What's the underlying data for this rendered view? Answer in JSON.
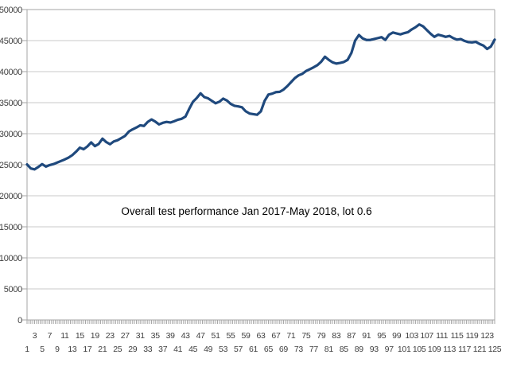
{
  "title": "Overall test performance Jan 2017-May 2018, lot 0.6",
  "colors": {
    "line": "#1F497D",
    "gridline": "#C9C9C9",
    "axis": "#A6A6A6",
    "tick_label": "#3F3F3F",
    "title_text": "#000000",
    "background": "#FFFFFF"
  },
  "chart_data": {
    "type": "line",
    "title": "Overall test performance Jan 2017-May 2018, lot 0.6",
    "xlabel": "",
    "ylabel": "",
    "x_start": 1,
    "x_step": 1,
    "x_count": 125,
    "xlim": [
      1,
      125
    ],
    "ylim": [
      0,
      50000
    ],
    "ytick_step": 5000,
    "yticks": [
      0,
      5000,
      10000,
      15000,
      20000,
      25000,
      30000,
      35000,
      40000,
      45000,
      50000
    ],
    "xtick_labels": [
      1,
      3,
      5,
      7,
      9,
      11,
      13,
      15,
      17,
      19,
      21,
      23,
      25,
      27,
      29,
      31,
      33,
      35,
      37,
      39,
      41,
      43,
      45,
      47,
      49,
      51,
      53,
      55,
      57,
      59,
      61,
      63,
      65,
      67,
      69,
      71,
      73,
      75,
      77,
      79,
      81,
      83,
      85,
      87,
      89,
      91,
      93,
      95,
      97,
      99,
      101,
      103,
      105,
      107,
      109,
      111,
      113,
      115,
      117,
      119,
      121,
      123,
      125
    ],
    "xtick_label_rows": "staggered-two-rows",
    "grid": "horizontal",
    "legend": "none",
    "series": [
      {
        "name": "Overall test performance",
        "values": [
          25050,
          24400,
          24250,
          24650,
          25100,
          24700,
          24950,
          25100,
          25350,
          25600,
          25850,
          26150,
          26550,
          27100,
          27750,
          27500,
          27950,
          28600,
          28000,
          28350,
          29200,
          28650,
          28300,
          28750,
          28950,
          29300,
          29650,
          30350,
          30700,
          31000,
          31350,
          31250,
          31900,
          32300,
          31950,
          31500,
          31750,
          31900,
          31800,
          32000,
          32250,
          32400,
          32750,
          34000,
          35150,
          35750,
          36500,
          35900,
          35700,
          35300,
          34900,
          35150,
          35650,
          35350,
          34800,
          34500,
          34400,
          34250,
          33600,
          33250,
          33150,
          33050,
          33600,
          35300,
          36300,
          36450,
          36700,
          36750,
          37100,
          37650,
          38300,
          38950,
          39400,
          39650,
          40100,
          40400,
          40700,
          41050,
          41600,
          42400,
          41900,
          41500,
          41300,
          41400,
          41550,
          41900,
          43000,
          45000,
          45900,
          45350,
          45100,
          45100,
          45250,
          45400,
          45550,
          45100,
          45950,
          46300,
          46150,
          46000,
          46200,
          46350,
          46800,
          47150,
          47600,
          47300,
          46700,
          46100,
          45600,
          45950,
          45800,
          45600,
          45750,
          45400,
          45150,
          45250,
          44950,
          44750,
          44700,
          44800,
          44450,
          44200,
          43650,
          44050,
          45150
        ]
      }
    ]
  }
}
